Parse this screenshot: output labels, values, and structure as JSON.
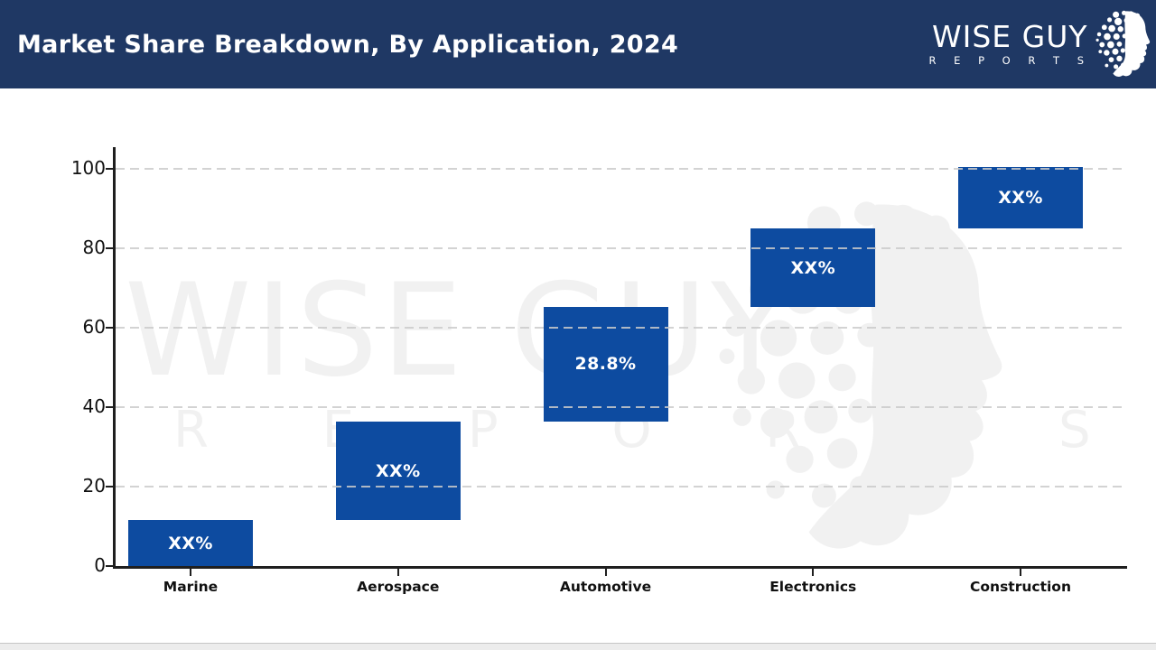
{
  "header": {
    "title": "Market Share Breakdown, By Application, 2024",
    "logo": {
      "wordmark": "WISE GUY",
      "subtext": "R E P O R T S"
    }
  },
  "watermark": {
    "wordmark": "WISE GUY",
    "subtext": "R E P O R T S"
  },
  "colors": {
    "header_background": "#1f3864",
    "bar_blue": "#0d4ba0",
    "gridline": "#cbcbcb",
    "axis": "#1f1f1f",
    "bar_label": "#ffffff",
    "watermark_gray": "#f1f1f1"
  },
  "chart_data": {
    "type": "bar",
    "subtype": "waterfall",
    "title": "Market Share Breakdown, By Application, 2024",
    "categories": [
      "Marine",
      "Aerospace",
      "Automotive",
      "Electronics",
      "Construction"
    ],
    "segments": [
      {
        "category": "Marine",
        "start": 0,
        "end": 11.5,
        "value": 11.5,
        "label": "XX%"
      },
      {
        "category": "Aerospace",
        "start": 11.5,
        "end": 36.4,
        "value": 24.9,
        "label": "XX%"
      },
      {
        "category": "Automotive",
        "start": 36.4,
        "end": 65.2,
        "value": 28.8,
        "label": "28.8%"
      },
      {
        "category": "Electronics",
        "start": 65.2,
        "end": 85.0,
        "value": 19.8,
        "label": "XX%"
      },
      {
        "category": "Construction",
        "start": 85.0,
        "end": 100.5,
        "value": 15.5,
        "label": "XX%"
      }
    ],
    "xlabel": "",
    "ylabel": "",
    "ylim": [
      0,
      105
    ],
    "yticks": [
      0,
      20,
      40,
      60,
      80,
      100
    ],
    "grid": "horizontal dashed gridlines drawn over bars",
    "legend": "none"
  }
}
